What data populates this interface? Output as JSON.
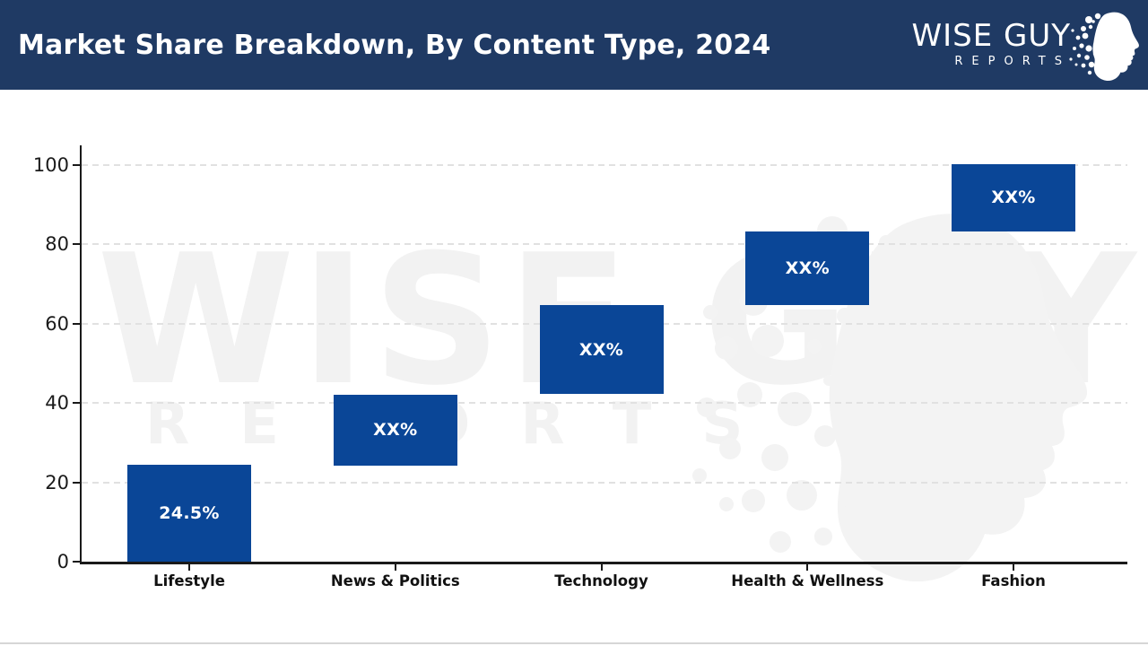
{
  "header": {
    "title": "Market Share Breakdown, By Content Type, 2024",
    "logo": {
      "brand_line1": "WISE GUY",
      "brand_line2": "REPORTS",
      "face_icon": "dotted-face-profile-icon"
    }
  },
  "watermark": {
    "line1": "WISE GUY",
    "line2": "REPORTS",
    "face_icon": "dotted-face-profile-watermark"
  },
  "colors": {
    "header_bg": "#1f3a64",
    "bar_fill": "#0a4697",
    "bar_label_text": "#ffffff",
    "gridline": "#e1e1e1",
    "axis": "#1a1a1a",
    "watermark": "#f2f2f2",
    "bottom_rule": "#d6d6d6"
  },
  "chart_data": {
    "type": "bar",
    "subtype": "floating-waterfall",
    "title": "Market Share Breakdown, By Content Type, 2024",
    "categories": [
      "Lifestyle",
      "News & Politics",
      "Technology",
      "Health & Wellness",
      "Fashion"
    ],
    "bars": [
      {
        "category": "Lifestyle",
        "start": 0,
        "end": 24.5,
        "label": "24.5%"
      },
      {
        "category": "News & Politics",
        "start": 24.3,
        "end": 42.0,
        "label": "XX%"
      },
      {
        "category": "Technology",
        "start": 42.3,
        "end": 64.7,
        "label": "XX%"
      },
      {
        "category": "Health & Wellness",
        "start": 64.8,
        "end": 83.3,
        "label": "XX%"
      },
      {
        "category": "Fashion",
        "start": 83.3,
        "end": 100.2,
        "label": "XX%"
      }
    ],
    "yticks": [
      0,
      20,
      40,
      60,
      80,
      100
    ],
    "ylim": [
      0,
      104
    ],
    "xlabel": "",
    "ylabel": "",
    "grid": "horizontal-dashed",
    "legend": "none"
  }
}
